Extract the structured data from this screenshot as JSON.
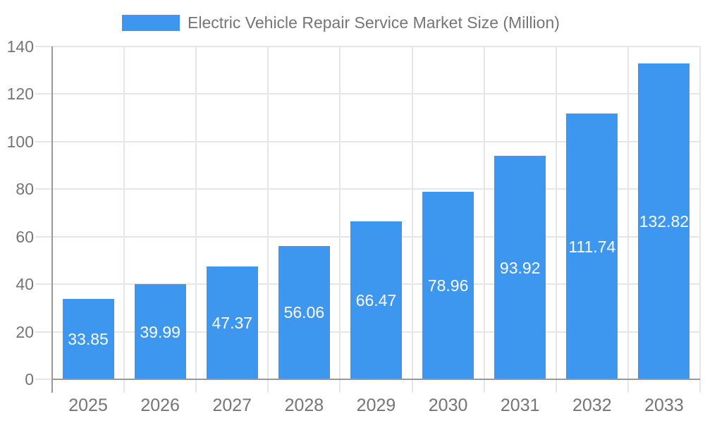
{
  "chart_data": {
    "type": "bar",
    "title": "Electric Vehicle Repair Service Market Size (Million)",
    "categories": [
      "2025",
      "2026",
      "2027",
      "2028",
      "2029",
      "2030",
      "2031",
      "2032",
      "2033"
    ],
    "values": [
      33.85,
      39.99,
      47.37,
      56.06,
      66.47,
      78.96,
      93.92,
      111.74,
      132.82
    ],
    "value_labels": [
      "33.85",
      "39.99",
      "47.37",
      "56.06",
      "66.47",
      "78.96",
      "93.92",
      "111.74",
      "132.82"
    ],
    "yticks": [
      0,
      20,
      40,
      60,
      80,
      100,
      120,
      140
    ],
    "ytick_labels": [
      "0",
      "20",
      "40",
      "60",
      "80",
      "100",
      "120",
      "140"
    ],
    "ylim": [
      0,
      140
    ],
    "xlabel": "",
    "ylabel": "",
    "grid": true,
    "legend_position": "top",
    "colors": {
      "bar": "#3d97ee",
      "grid_line": "#e6e6e6",
      "axis_line": "#999999",
      "tick_text": "#757575",
      "title_text": "#757575",
      "value_text": "#ffffff",
      "background": "#ffffff"
    }
  }
}
